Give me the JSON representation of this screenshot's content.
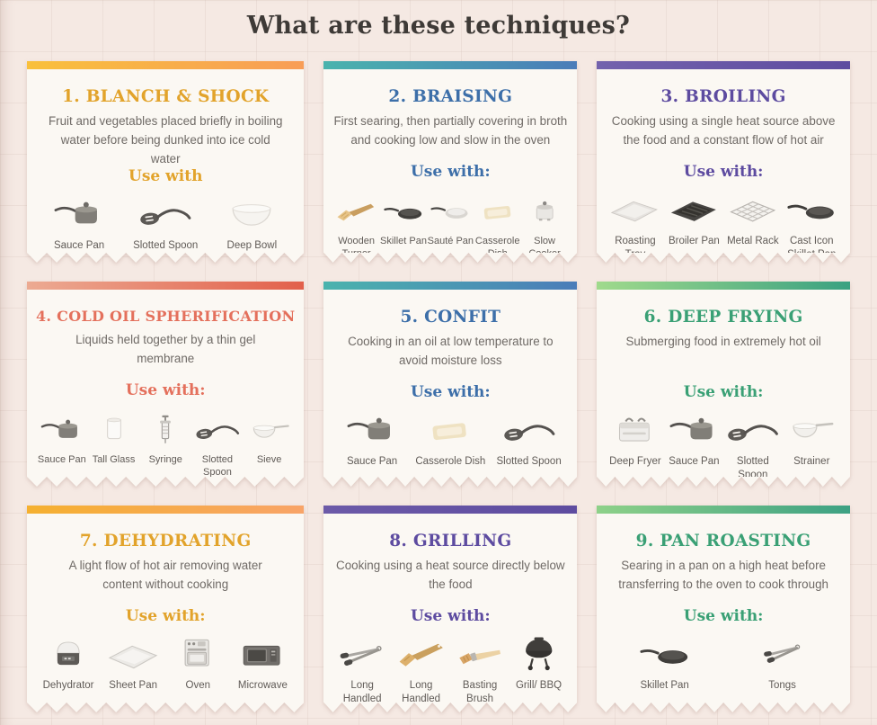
{
  "header": {
    "title": "What are these techniques?"
  },
  "theme": {
    "page_background": "#f5e9e3",
    "card_background": "#fbf8f3",
    "heading_color": "#3e3a37",
    "body_text_color": "#6f6a66",
    "tool_label_color": "#605b57"
  },
  "cards": [
    {
      "number": "1",
      "title": "1. BLANCH & SHOCK",
      "description": "Fruit and vegetables placed briefly in boiling water before being dunked into ice cold water",
      "use_with_label": "Use with",
      "accent_color": "#e2a32b",
      "bar_gradient": [
        "#f9c03c",
        "#f89d57"
      ],
      "tools": [
        {
          "icon": "sauce-pan-icon",
          "label": "Sauce Pan"
        },
        {
          "icon": "slotted-spoon-icon",
          "label": "Slotted Spoon"
        },
        {
          "icon": "deep-bowl-icon",
          "label": "Deep Bowl"
        }
      ]
    },
    {
      "number": "2",
      "title": "2. BRAISING",
      "description": "First searing, then partially covering in broth and cooking low and slow in the oven",
      "use_with_label": "Use with:",
      "accent_color": "#3d6fa9",
      "bar_gradient": [
        "#4ab3ad",
        "#4a7cb9"
      ],
      "tools": [
        {
          "icon": "wooden-turner-icon",
          "label": "Wooden Turner"
        },
        {
          "icon": "skillet-pan-icon",
          "label": "Skillet Pan"
        },
        {
          "icon": "saute-pan-icon",
          "label": "Sauté Pan"
        },
        {
          "icon": "casserole-dish-icon",
          "label": "Casserole Dish"
        },
        {
          "icon": "slow-cooker-icon",
          "label": "Slow Cooker"
        }
      ]
    },
    {
      "number": "3",
      "title": "3. BROILING",
      "description": "Cooking using a single heat source above the food and a constant flow of hot air",
      "use_with_label": "Use with:",
      "accent_color": "#5d4ba0",
      "bar_gradient": [
        "#7362ad",
        "#5e4ca0"
      ],
      "tools": [
        {
          "icon": "roasting-tray-icon",
          "label": "Roasting Tray"
        },
        {
          "icon": "broiler-pan-icon",
          "label": "Broiler Pan"
        },
        {
          "icon": "metal-rack-icon",
          "label": "Metal Rack"
        },
        {
          "icon": "cast-iron-skillet-icon",
          "label": "Cast Icon Skillet Pan"
        }
      ]
    },
    {
      "number": "4",
      "title": "4. COLD OIL SPHERIFICATION",
      "description": "Liquids held together by a thin gel membrane",
      "use_with_label": "Use with:",
      "accent_color": "#e4705c",
      "bar_gradient": [
        "#ecaa92",
        "#e2604b"
      ],
      "tools": [
        {
          "icon": "sauce-pan-icon",
          "label": "Sauce Pan"
        },
        {
          "icon": "tall-glass-icon",
          "label": "Tall Glass"
        },
        {
          "icon": "syringe-icon",
          "label": "Syringe"
        },
        {
          "icon": "slotted-spoon-icon",
          "label": "Slotted Spoon"
        },
        {
          "icon": "sieve-icon",
          "label": "Sieve"
        }
      ]
    },
    {
      "number": "5",
      "title": "5. CONFIT",
      "description": "Cooking in an oil at low temperature to avoid moisture loss",
      "use_with_label": "Use with:",
      "accent_color": "#3d6fa9",
      "bar_gradient": [
        "#4ab3ad",
        "#4a7cb9"
      ],
      "tools": [
        {
          "icon": "sauce-pan-icon",
          "label": "Sauce Pan"
        },
        {
          "icon": "casserole-dish-icon",
          "label": "Casserole Dish"
        },
        {
          "icon": "slotted-spoon-icon",
          "label": "Slotted Spoon"
        }
      ]
    },
    {
      "number": "6",
      "title": "6. DEEP FRYING",
      "description": "Submerging food in extremely hot oil",
      "use_with_label": "Use with:",
      "accent_color": "#3aa075",
      "bar_gradient": [
        "#a0da8c",
        "#3aa181"
      ],
      "tools": [
        {
          "icon": "deep-fryer-icon",
          "label": "Deep Fryer"
        },
        {
          "icon": "sauce-pan-icon",
          "label": "Sauce Pan"
        },
        {
          "icon": "slotted-spoon-icon",
          "label": "Slotted Spoon"
        },
        {
          "icon": "strainer-icon",
          "label": "Strainer"
        }
      ]
    },
    {
      "number": "7",
      "title": "7. DEHYDRATING",
      "description": "A light flow of hot air removing water content without cooking",
      "use_with_label": "Use with:",
      "accent_color": "#e2a32b",
      "bar_gradient": [
        "#f5b030",
        "#f8a468"
      ],
      "tools": [
        {
          "icon": "dehydrator-icon",
          "label": "Dehydrator"
        },
        {
          "icon": "sheet-pan-icon",
          "label": "Sheet Pan"
        },
        {
          "icon": "oven-icon",
          "label": "Oven"
        },
        {
          "icon": "microwave-icon",
          "label": "Microwave"
        }
      ]
    },
    {
      "number": "8",
      "title": "8. GRILLING",
      "description": "Cooking using a heat source directly below the food",
      "use_with_label": "Use with:",
      "accent_color": "#5d4ba0",
      "bar_gradient": [
        "#6c5aa8",
        "#5e4ca0"
      ],
      "tools": [
        {
          "icon": "long-handled-tongs-icon",
          "label": "Long Handled Tongs"
        },
        {
          "icon": "long-handled-spatula-icon",
          "label": "Long Handled Spatula"
        },
        {
          "icon": "basting-brush-icon",
          "label": "Basting Brush"
        },
        {
          "icon": "grill-bbq-icon",
          "label": "Grill/ BBQ"
        }
      ]
    },
    {
      "number": "9",
      "title": "9. PAN ROASTING",
      "description": "Searing in a pan on a high heat before transferring to the oven to cook through",
      "use_with_label": "Use with:",
      "accent_color": "#3aa075",
      "bar_gradient": [
        "#8ed189",
        "#3da183"
      ],
      "tools": [
        {
          "icon": "skillet-pan-icon",
          "label": "Skillet Pan"
        },
        {
          "icon": "tongs-icon",
          "label": "Tongs"
        }
      ]
    }
  ]
}
